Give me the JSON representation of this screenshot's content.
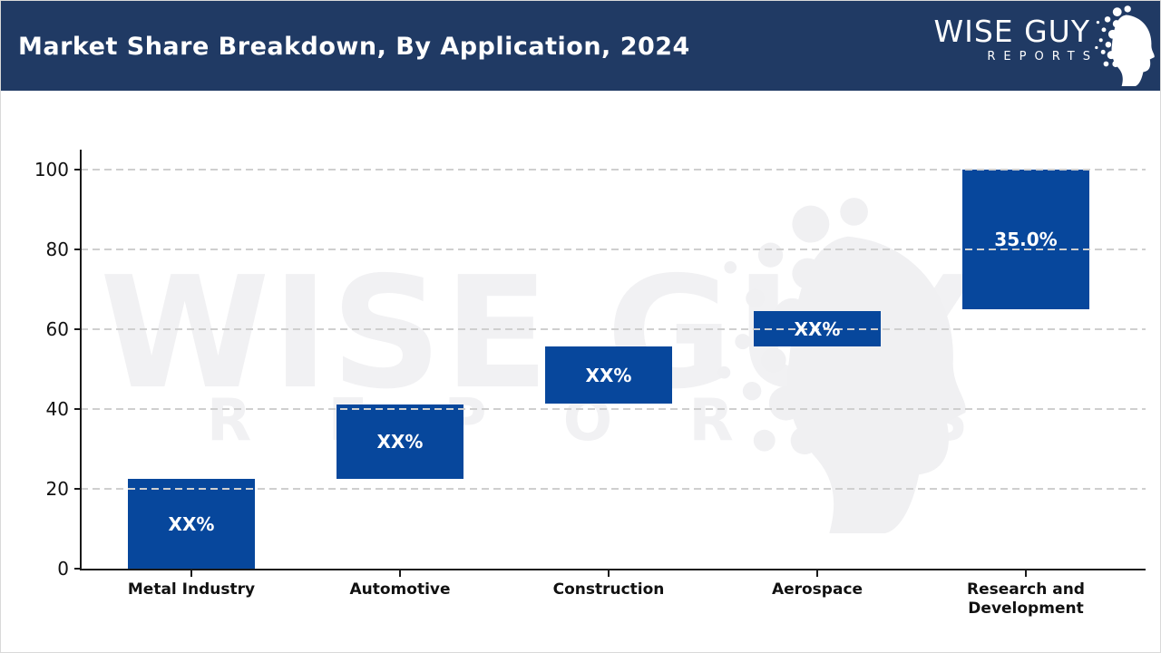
{
  "header": {
    "title": "Market Share Breakdown, By Application, 2024",
    "logo": {
      "primary": "WISE GUY",
      "secondary": "REPORTS"
    }
  },
  "watermark": {
    "primary": "WISE GUY",
    "secondary": "R E P O R T S"
  },
  "chart_data": {
    "type": "bar",
    "subtype": "floating-segment-waterfall",
    "title": "Market Share Breakdown, By Application, 2024",
    "xlabel": "",
    "ylabel": "",
    "ylim": [
      0,
      105
    ],
    "yticks": [
      0,
      20,
      40,
      60,
      80,
      100
    ],
    "grid": "horizontal-dashed",
    "legend": false,
    "categories": [
      "Metal Industry",
      "Automotive",
      "Construction",
      "Aerospace",
      "Research and Development"
    ],
    "segments": [
      {
        "category": "Metal Industry",
        "start": 0,
        "end": 22.5,
        "label": "XX%"
      },
      {
        "category": "Automotive",
        "start": 22.5,
        "end": 41.2,
        "label": "XX%"
      },
      {
        "category": "Construction",
        "start": 41.3,
        "end": 55.6,
        "label": "XX%"
      },
      {
        "category": "Aerospace",
        "start": 55.6,
        "end": 64.6,
        "label": "XX%"
      },
      {
        "category": "Research and Development",
        "start": 64.9,
        "end": 100,
        "label": "35.0%"
      }
    ]
  },
  "colors": {
    "header_bg": "#203a64",
    "bar": "#07479c",
    "grid": "#cfcfcf",
    "axis": "#1a1a1a",
    "watermark": "#f1f1f3"
  }
}
